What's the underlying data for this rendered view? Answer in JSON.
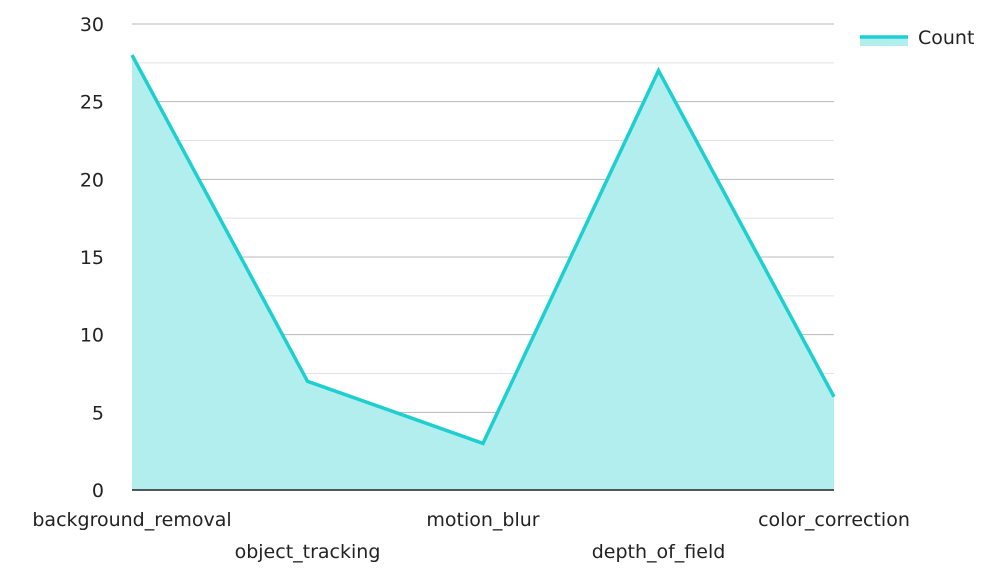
{
  "chart_data": {
    "type": "area",
    "categories": [
      "background_removal",
      "object_tracking",
      "motion_blur",
      "depth_of_field",
      "color_correction"
    ],
    "series": [
      {
        "name": "Count",
        "values": [
          28,
          7,
          3,
          27,
          6
        ]
      }
    ],
    "yticks": [
      "0",
      "5",
      "10",
      "15",
      "20",
      "25",
      "30"
    ],
    "ylim": [
      0,
      30
    ],
    "grid": true,
    "legend": "top-right",
    "colors": {
      "line": "#1ecfcf",
      "fill": "#b2eeee",
      "grid_major": "#b8b8b8",
      "grid_minor": "#e2e2e2",
      "axis": "#222222"
    }
  }
}
